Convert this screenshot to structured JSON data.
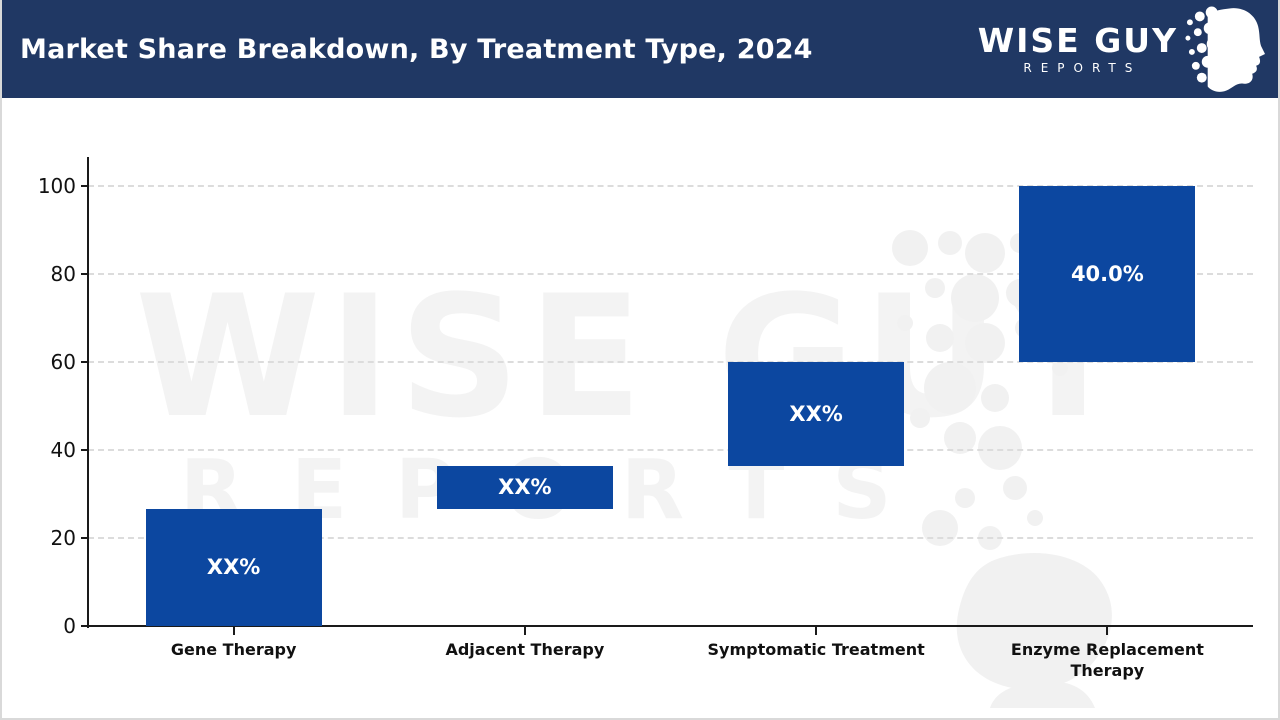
{
  "header": {
    "title": "Market Share Breakdown, By Treatment Type, 2024",
    "bg_color": "#203864",
    "logo": {
      "line1": "WISE GUY",
      "line2": "REPORTS"
    }
  },
  "watermark": {
    "line1": "WISE GUY",
    "line2": "REPORTS"
  },
  "chart_data": {
    "type": "bar",
    "subtype": "waterfall",
    "title": "Market Share Breakdown, By Treatment Type, 2024",
    "categories": [
      "Gene Therapy",
      "Adjacent Therapy",
      "Symptomatic Treatment",
      "Enzyme Replacement Therapy"
    ],
    "bars": [
      {
        "category": "Gene Therapy",
        "start": 0,
        "end": 26.7,
        "value": 26.7,
        "label": "XX%"
      },
      {
        "category": "Adjacent Therapy",
        "start": 26.7,
        "end": 36.4,
        "value": 9.7,
        "label": "XX%"
      },
      {
        "category": "Symptomatic Treatment",
        "start": 36.4,
        "end": 60.0,
        "value": 23.6,
        "label": "XX%"
      },
      {
        "category": "Enzyme Replacement Therapy",
        "start": 60.0,
        "end": 100.0,
        "value": 40.0,
        "label": "40.0%"
      }
    ],
    "yticks": [
      0,
      20,
      40,
      60,
      80,
      100
    ],
    "ylim": [
      0,
      100
    ],
    "bar_color": "#0c47a0",
    "axis_color": "#1a1a1a",
    "grid": "horizontal-dashed",
    "legend": "none"
  }
}
